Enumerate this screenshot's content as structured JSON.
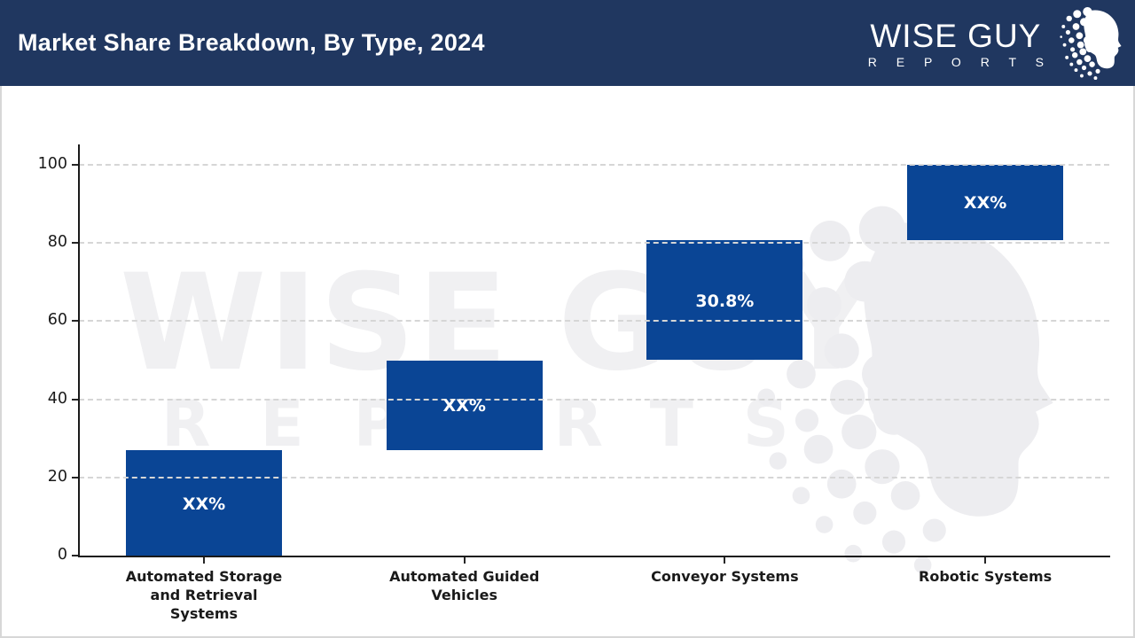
{
  "header": {
    "title": "Market Share Breakdown, By Type, 2024",
    "logo": {
      "name": "WISE GUY",
      "sub": "R E P O R T S"
    }
  },
  "watermark": {
    "main": "WISE GUY",
    "sub": "REPORTS"
  },
  "chart_data": {
    "type": "bar",
    "subtype": "waterfall-floating-bars",
    "title": "Market Share Breakdown, By Type, 2024",
    "categories": [
      {
        "label": "Automated Storage and Retrieval Systems",
        "lines": [
          "Automated Storage",
          "and Retrieval",
          "Systems"
        ]
      },
      {
        "label": "Automated Guided Vehicles",
        "lines": [
          "Automated Guided",
          "Vehicles"
        ]
      },
      {
        "label": "Conveyor Systems",
        "lines": [
          "Conveyor Systems"
        ]
      },
      {
        "label": "Robotic Systems",
        "lines": [
          "Robotic Systems"
        ]
      }
    ],
    "segments": [
      {
        "category": "Automated Storage and Retrieval Systems",
        "start": 0,
        "end": 26.9,
        "value": 26.9,
        "label": "XX%"
      },
      {
        "category": "Automated Guided Vehicles",
        "start": 26.9,
        "end": 50.0,
        "value": 23.1,
        "label": "XX%"
      },
      {
        "category": "Conveyor Systems",
        "start": 50.0,
        "end": 80.8,
        "value": 30.8,
        "label": "30.8%"
      },
      {
        "category": "Robotic Systems",
        "start": 80.8,
        "end": 100,
        "value": 19.2,
        "label": "XX%"
      }
    ],
    "ylabel": "",
    "xlabel": "",
    "yticks": [
      0,
      20,
      40,
      60,
      80,
      100
    ],
    "ylim": [
      0,
      105
    ],
    "grid": {
      "horizontal": true,
      "style": "dashed",
      "above_bars": true
    },
    "legend": "none",
    "bar_color": "#0a4595",
    "bar_label_color": "#ffffff"
  },
  "colors": {
    "header_bg": "#203760",
    "bar": "#0a4595",
    "axis": "#1a1a1a",
    "gridline": "#d6d6d6",
    "watermark": "#f0f0f2",
    "border": "#d7d7d7",
    "title_text": "#ffffff"
  }
}
